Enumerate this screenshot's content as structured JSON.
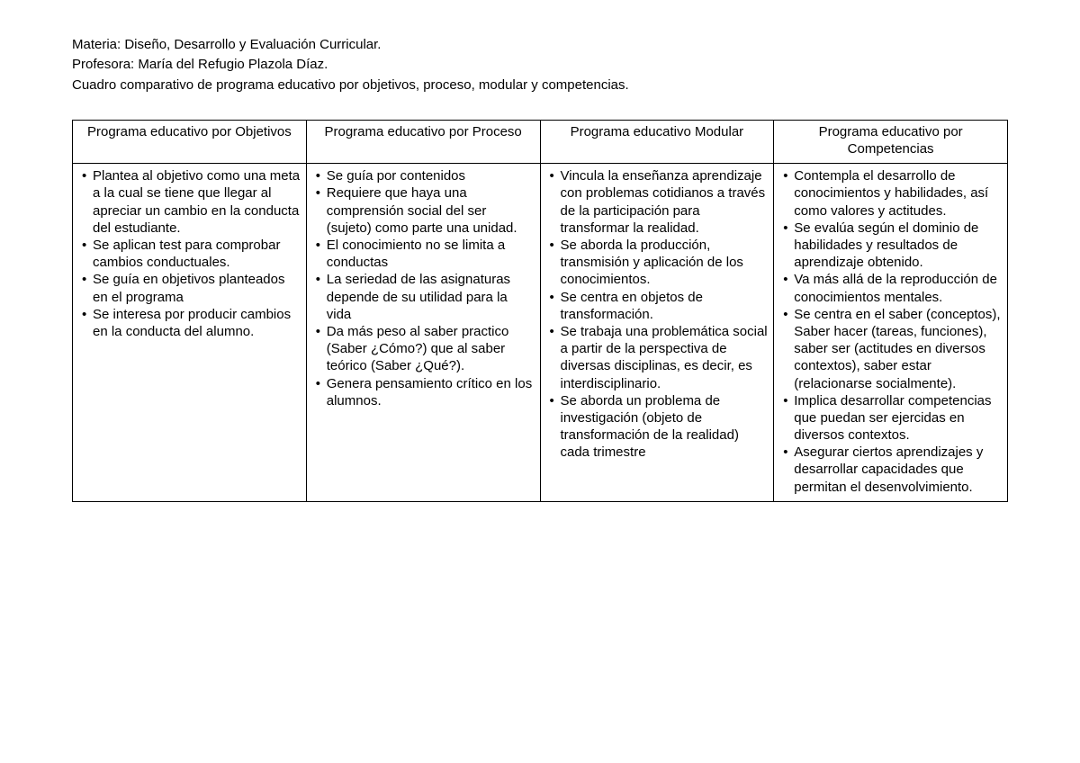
{
  "header": {
    "line1": "Materia: Diseño, Desarrollo y Evaluación Curricular.",
    "line2": "Profesora: María del Refugio Plazola Díaz.",
    "line3": "Cuadro comparativo de programa educativo por objetivos, proceso, modular y competencias."
  },
  "table": {
    "border_color": "#000000",
    "background": "#ffffff",
    "font_size_pt": 11,
    "columns": [
      {
        "id": "col1",
        "header": "Programa educativo por Objetivos"
      },
      {
        "id": "col2",
        "header": "Programa educativo por Proceso"
      },
      {
        "id": "col3",
        "header": "Programa educativo Modular"
      },
      {
        "id": "col4",
        "header": "Programa educativo por Competencias"
      }
    ],
    "cells": {
      "col1": [
        "Plantea al objetivo como una meta a la cual se tiene que llegar al apreciar un cambio en la conducta del estudiante.",
        "Se aplican test para comprobar cambios conductuales.",
        "Se guía en objetivos planteados en el programa",
        "Se interesa por producir cambios en la conducta del alumno."
      ],
      "col2": [
        "Se guía por contenidos",
        "Requiere que haya una comprensión social del ser (sujeto) como parte una unidad.",
        "El conocimiento no se limita a conductas",
        "La seriedad de las asignaturas depende de su utilidad para la vida",
        "Da más peso al saber practico (Saber ¿Cómo?) que al saber teórico (Saber ¿Qué?).",
        "Genera pensamiento crítico en los alumnos."
      ],
      "col3": [
        "Vincula la enseñanza aprendizaje con problemas cotidianos a través de la participación para transformar la realidad.",
        "Se aborda la producción, transmisión y aplicación de los conocimientos.",
        "Se centra en objetos de transformación.",
        "Se trabaja una problemática social a partir de la perspectiva de diversas disciplinas, es decir, es interdisciplinario.",
        "Se aborda un problema de investigación (objeto de transformación de la realidad) cada trimestre"
      ],
      "col4": [
        "Contempla el desarrollo de conocimientos y habilidades, así como valores y actitudes.",
        "Se evalúa según el dominio de habilidades y resultados de aprendizaje obtenido.",
        "Va más allá de la reproducción de conocimientos mentales.",
        "Se centra en el saber (conceptos), Saber hacer (tareas, funciones), saber ser (actitudes en diversos contextos), saber estar (relacionarse socialmente).",
        "Implica desarrollar competencias que puedan ser ejercidas en diversos contextos.",
        "Asegurar ciertos aprendizajes y desarrollar capacidades que permitan el desenvolvimiento."
      ]
    }
  }
}
